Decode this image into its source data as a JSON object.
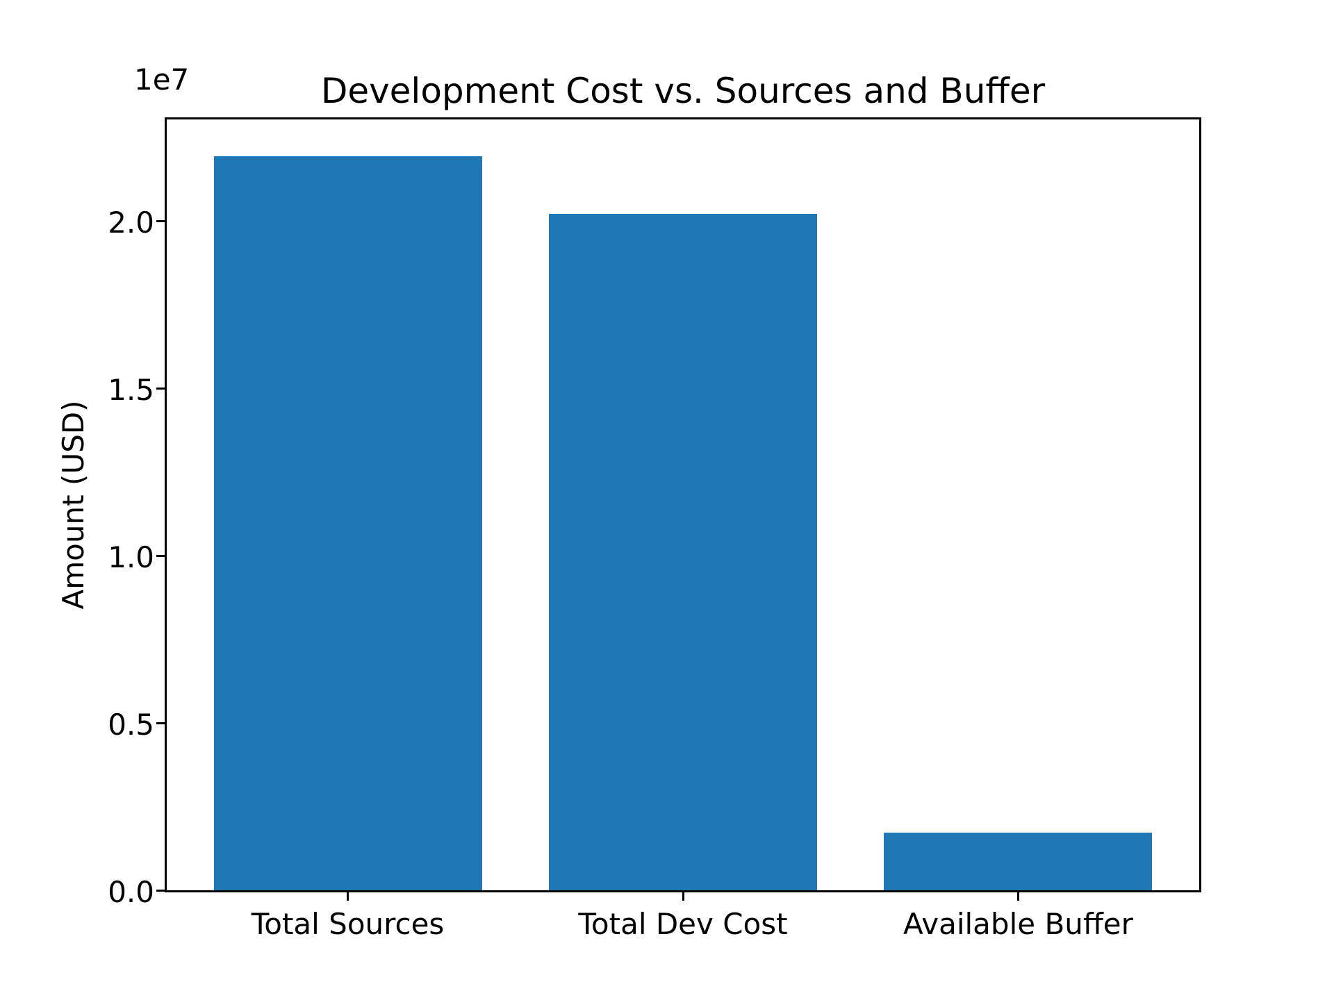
{
  "chart_data": {
    "type": "bar",
    "title": "Development Cost vs. Sources and Buffer",
    "categories": [
      "Total Sources",
      "Total Dev Cost",
      "Available Buffer"
    ],
    "values": [
      21930000,
      20210000,
      1720000
    ],
    "xlabel": "",
    "ylabel": "Amount (USD)",
    "y_offset_label": "1e7",
    "bar_color": "#1f77b4",
    "background_color": "#ffffff",
    "spine_color": "#000000",
    "ylim": [
      0,
      23030000
    ],
    "xlim": [
      -0.54,
      2.54
    ],
    "bar_width": 0.8,
    "grid": false,
    "legend_position": "none",
    "yticks": {
      "values": [
        0,
        5000000,
        10000000,
        15000000,
        20000000
      ],
      "labels": [
        "0.0",
        "0.5",
        "1.0",
        "1.5",
        "2.0"
      ]
    }
  }
}
